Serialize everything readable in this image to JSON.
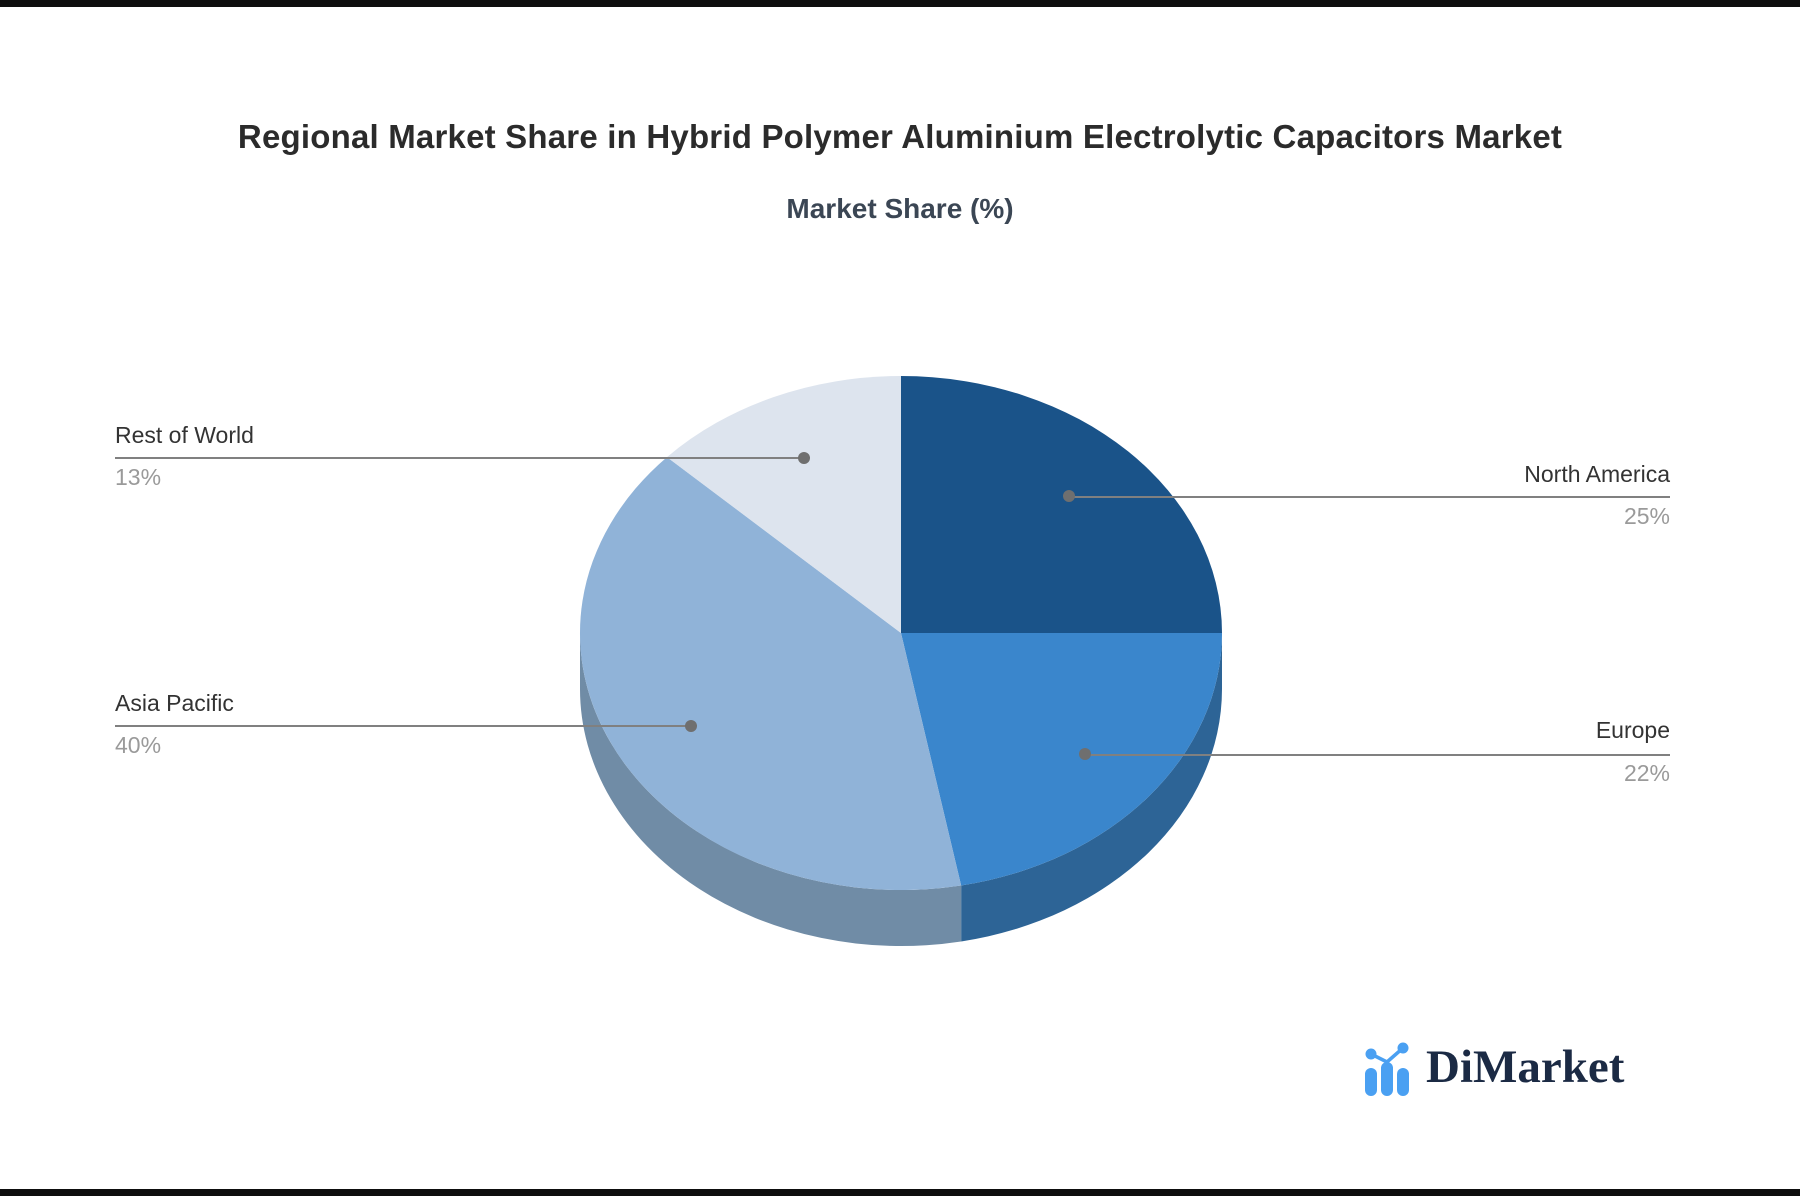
{
  "chart_data": {
    "type": "pie",
    "title": "Regional Market Share in Hybrid Polymer Aluminium Electrolytic Capacitors Market",
    "subtitle": "Market Share (%)",
    "unit": "%",
    "start_angle_deg": -90,
    "direction": "clockwise",
    "style": "3d-pie-with-callouts",
    "legend_position": "none",
    "slices": [
      {
        "label": "North America",
        "value": 25,
        "display": "25%",
        "color": "#1a5389",
        "side_color": "#14426d"
      },
      {
        "label": "Europe",
        "value": 22,
        "display": "22%",
        "color": "#3a86cc",
        "side_color": "#2d6496"
      },
      {
        "label": "Asia Pacific",
        "value": 40,
        "display": "40%",
        "color": "#90b3d8",
        "side_color": "#708ca6"
      },
      {
        "label": "Rest of World",
        "value": 13,
        "display": "13%",
        "color": "#dde4ee",
        "side_color": "#aab6c6"
      }
    ]
  },
  "callout_colors": {
    "label_text": "#333333",
    "percent_text": "#9a9a9a",
    "line": "#808080",
    "dot": "#6f6f6f"
  },
  "logo": {
    "text": "DiMarket",
    "icon": "bar-chart-with-trend-dots-icon",
    "icon_color": "#4aa0f2",
    "text_color": "#1b2a44"
  }
}
